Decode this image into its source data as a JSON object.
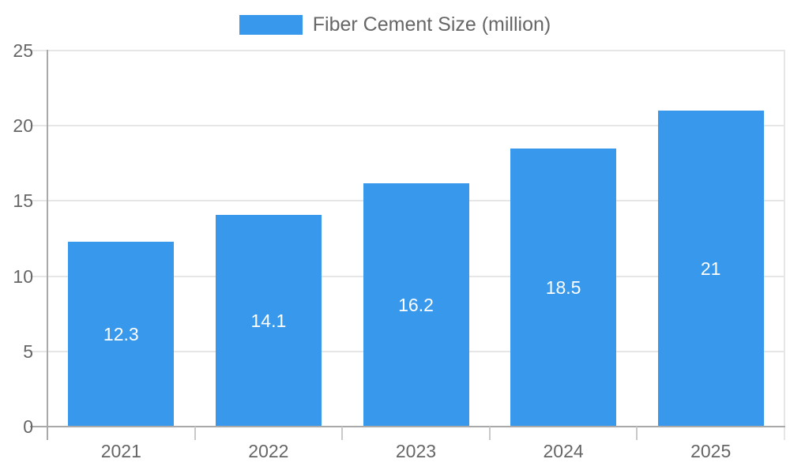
{
  "chart_data": {
    "type": "bar",
    "title": "",
    "legend": "Fiber Cement Size (million)",
    "categories": [
      "2021",
      "2022",
      "2023",
      "2024",
      "2025"
    ],
    "values": [
      12.3,
      14.1,
      16.2,
      18.5,
      21
    ],
    "value_labels": [
      "12.3",
      "14.1",
      "16.2",
      "18.5",
      "21"
    ],
    "xlabel": "",
    "ylabel": "",
    "ylim": [
      0,
      25
    ],
    "yticks": [
      0,
      5,
      10,
      15,
      20,
      25
    ],
    "grid": true,
    "legend_position": "top-center",
    "colors": {
      "bar": "#3899EC",
      "value_label": "#ffffff",
      "axis_text": "#666666",
      "legend_text": "#666666",
      "axis_line": "#a9a9a9",
      "gridline": "#e6e6e6",
      "tick": "#c9c9c9"
    }
  }
}
